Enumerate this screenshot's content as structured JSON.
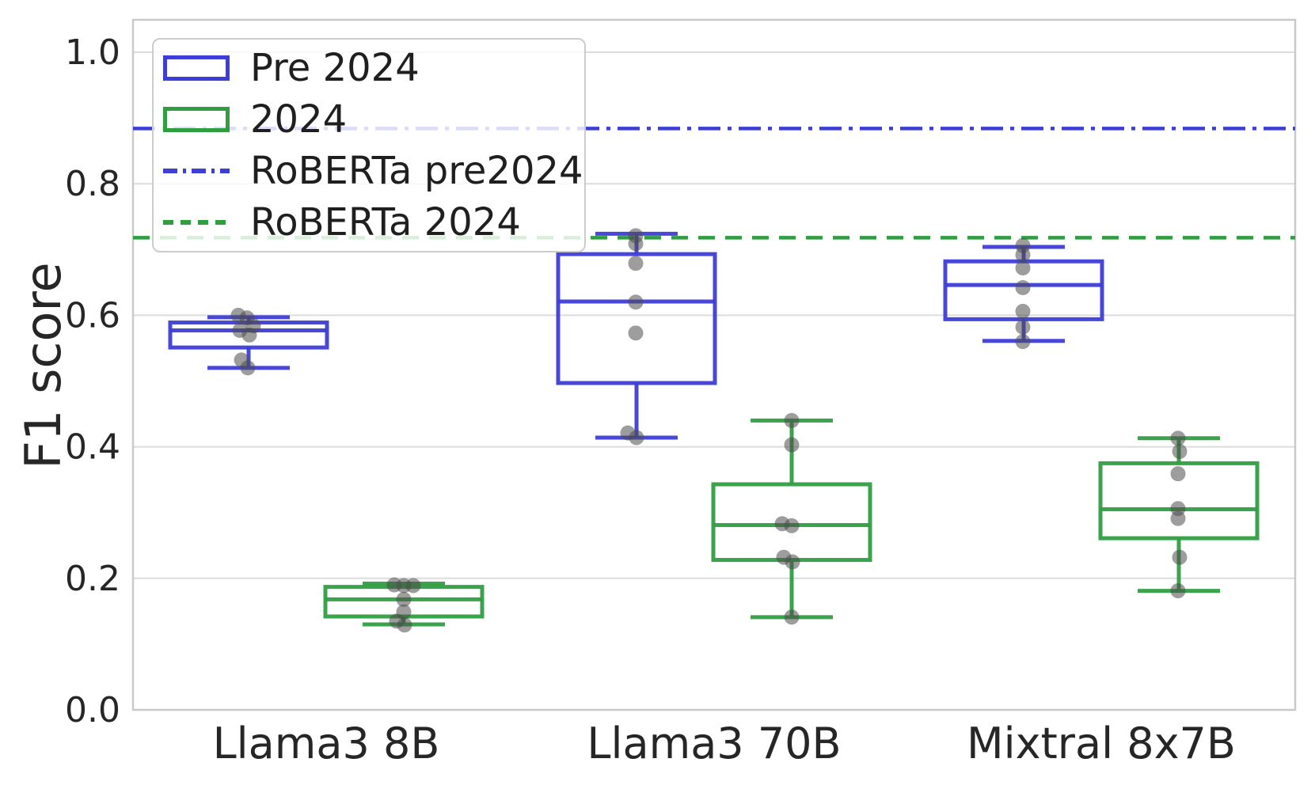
{
  "colors": {
    "pre2024_blue": "#3d3dd8",
    "s2024_green": "#2f9e41",
    "point_gray": "#4d4d4d",
    "gridline": "#dcdcdc",
    "spine": "#c9c9c9",
    "text": "#262626"
  },
  "legend": {
    "entries": [
      {
        "label": "Pre 2024",
        "kind": "box",
        "color": "#3d3dd8",
        "dash": null
      },
      {
        "label": "2024",
        "kind": "box",
        "color": "#2f9e41",
        "dash": null
      },
      {
        "label": "RoBERTa pre2024",
        "kind": "line",
        "color": "#3d3dd8",
        "dash": "dashdot"
      },
      {
        "label": "RoBERTa 2024",
        "kind": "line",
        "color": "#2f9e41",
        "dash": "dashed"
      }
    ]
  },
  "chart_data": {
    "type": "box",
    "ylabel": "F1 score",
    "categories": [
      "Llama3 8B",
      "Llama3 70B",
      "Mixtral 8x7B"
    ],
    "yticks": [
      "0.0",
      "0.2",
      "0.4",
      "0.6",
      "0.8",
      "1.0"
    ],
    "ylim": [
      0,
      1.05
    ],
    "grid": "horizontal",
    "legend_position": "upper left",
    "series": [
      {
        "name": "Pre 2024",
        "color": "#3d3dd8",
        "boxes": [
          {
            "category": "Llama3 8B",
            "whisker_low": 0.52,
            "q1": 0.551,
            "median": 0.577,
            "q3": 0.589,
            "whisker_high": 0.597,
            "points": [
              {
                "v": 0.6,
                "dx": -13
              },
              {
                "v": 0.596,
                "dx": -2
              },
              {
                "v": 0.584,
                "dx": 6
              },
              {
                "v": 0.577,
                "dx": -11
              },
              {
                "v": 0.57,
                "dx": 1
              },
              {
                "v": 0.532,
                "dx": -9
              },
              {
                "v": 0.52,
                "dx": -1
              }
            ]
          },
          {
            "category": "Llama3 70B",
            "whisker_low": 0.414,
            "q1": 0.497,
            "median": 0.621,
            "q3": 0.693,
            "whisker_high": 0.724,
            "points": [
              {
                "v": 0.721,
                "dx": -1
              },
              {
                "v": 0.709,
                "dx": -1
              },
              {
                "v": 0.679,
                "dx": -1
              },
              {
                "v": 0.62,
                "dx": -1
              },
              {
                "v": 0.573,
                "dx": -1
              },
              {
                "v": 0.421,
                "dx": -11
              },
              {
                "v": 0.414,
                "dx": 0
              }
            ]
          },
          {
            "category": "Mixtral 8x7B",
            "whisker_low": 0.561,
            "q1": 0.594,
            "median": 0.646,
            "q3": 0.682,
            "whisker_high": 0.704,
            "points": [
              {
                "v": 0.706,
                "dx": -1
              },
              {
                "v": 0.692,
                "dx": -1
              },
              {
                "v": 0.672,
                "dx": -1
              },
              {
                "v": 0.642,
                "dx": -1
              },
              {
                "v": 0.606,
                "dx": -1
              },
              {
                "v": 0.582,
                "dx": -1
              },
              {
                "v": 0.56,
                "dx": -1
              }
            ]
          }
        ]
      },
      {
        "name": "2024",
        "color": "#2f9e41",
        "boxes": [
          {
            "category": "Llama3 8B",
            "whisker_low": 0.13,
            "q1": 0.142,
            "median": 0.168,
            "q3": 0.187,
            "whisker_high": 0.192,
            "points": [
              {
                "v": 0.19,
                "dx": -12
              },
              {
                "v": 0.189,
                "dx": 0
              },
              {
                "v": 0.189,
                "dx": 12
              },
              {
                "v": 0.168,
                "dx": 0
              },
              {
                "v": 0.149,
                "dx": 0
              },
              {
                "v": 0.135,
                "dx": -9
              },
              {
                "v": 0.129,
                "dx": 1
              }
            ]
          },
          {
            "category": "Llama3 70B",
            "whisker_low": 0.141,
            "q1": 0.228,
            "median": 0.281,
            "q3": 0.343,
            "whisker_high": 0.44,
            "points": [
              {
                "v": 0.44,
                "dx": 0
              },
              {
                "v": 0.403,
                "dx": 0
              },
              {
                "v": 0.283,
                "dx": -12
              },
              {
                "v": 0.28,
                "dx": 0
              },
              {
                "v": 0.232,
                "dx": -10
              },
              {
                "v": 0.225,
                "dx": 1
              },
              {
                "v": 0.141,
                "dx": 0
              }
            ]
          },
          {
            "category": "Mixtral 8x7B",
            "whisker_low": 0.181,
            "q1": 0.261,
            "median": 0.305,
            "q3": 0.375,
            "whisker_high": 0.413,
            "points": [
              {
                "v": 0.413,
                "dx": -1
              },
              {
                "v": 0.393,
                "dx": 1
              },
              {
                "v": 0.359,
                "dx": -1
              },
              {
                "v": 0.306,
                "dx": -1
              },
              {
                "v": 0.291,
                "dx": -1
              },
              {
                "v": 0.232,
                "dx": 1
              },
              {
                "v": 0.181,
                "dx": -1
              }
            ]
          }
        ]
      }
    ],
    "reference_lines": [
      {
        "label": "RoBERTa pre2024",
        "value": 0.884,
        "color": "#3d3dd8",
        "style": "dashdot"
      },
      {
        "label": "RoBERTa 2024",
        "value": 0.718,
        "color": "#2f9e41",
        "style": "dashed"
      }
    ]
  }
}
